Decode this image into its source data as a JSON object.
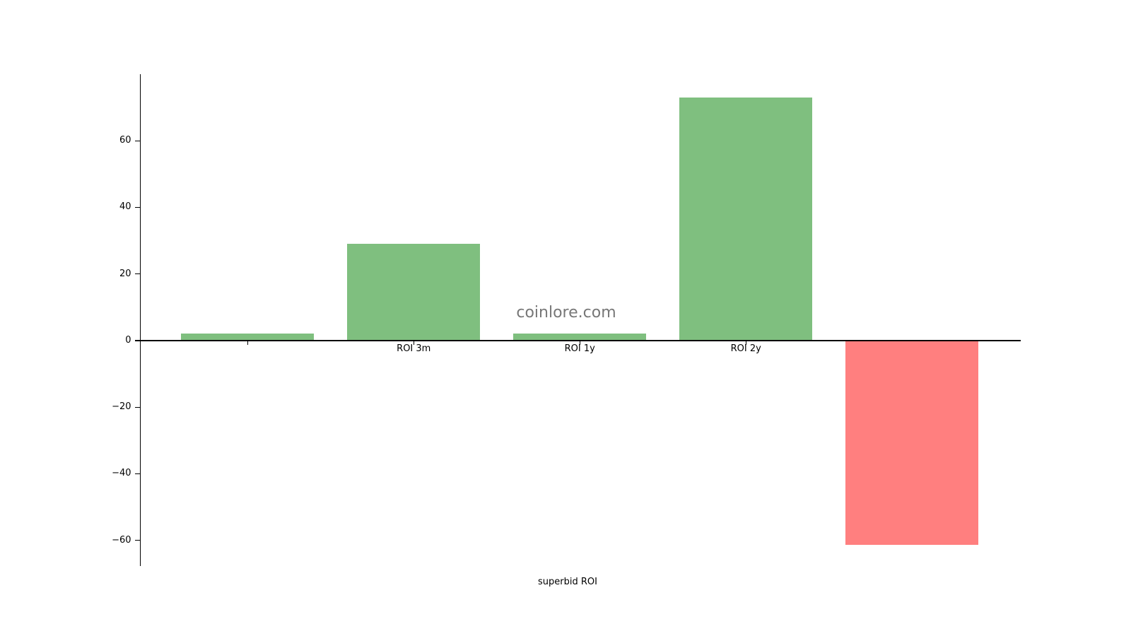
{
  "watermark": {
    "text": "coinlore.com",
    "color": "#777777"
  },
  "chart_data": {
    "type": "bar",
    "title": "",
    "xlabel": "superbid ROI",
    "ylabel": "",
    "categories": [
      "",
      "ROI 3m",
      "ROI 1y",
      "ROI 2y",
      ""
    ],
    "values": [
      2.1,
      29,
      2.1,
      73,
      -61
    ],
    "series": [
      {
        "name": "superbid ROI",
        "values": [
          2.1,
          29,
          2.1,
          73,
          -61
        ]
      }
    ],
    "bar_color_positive": "#7fbf7f",
    "bar_color_negative": "#ff7f7f",
    "axis_color": "#000000",
    "ylim": [
      -67.7,
      80
    ],
    "yticks": [
      60,
      40,
      20,
      0,
      -20,
      -40,
      -60
    ],
    "ytick_labels": [
      "60",
      "40",
      "20",
      "0",
      "−20",
      "−40",
      "−60"
    ],
    "xtick_indices": [
      0,
      1,
      2,
      3
    ],
    "bar_width_fraction": 0.8,
    "grid": false,
    "legend": false
  }
}
